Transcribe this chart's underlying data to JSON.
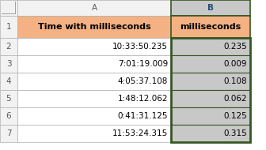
{
  "col_a_header": "A",
  "col_b_header": "B",
  "row1_a": "Time with milliseconds",
  "row1_b": "milliseconds",
  "header_bg": "#F4B183",
  "col_b_selected_bg": "#C8C8C8",
  "col_b_border_color": "#375623",
  "col_b_header_bg": "#C8C8C8",
  "row_numbers": [
    "1",
    "2",
    "3",
    "4",
    "5",
    "6",
    "7"
  ],
  "col_a_data": [
    "10:33:50.235",
    "7:01:19.009",
    "4:05:37.108",
    "1:48:12.062",
    "0:41:31.125",
    "11:53:24.315"
  ],
  "col_b_data": [
    "0.235",
    "0.009",
    "0.108",
    "0.062",
    "0.125",
    "0.315"
  ],
  "grid_color": "#B0B0B0",
  "row_num_bg": "#F2F2F2",
  "col_header_bg": "#F2F2F2",
  "cell_bg": "#FFFFFF",
  "font_size": 7.5,
  "row_num_color": "#595959",
  "col_header_color": "#595959",
  "triangle_color": "#A0A0A0"
}
